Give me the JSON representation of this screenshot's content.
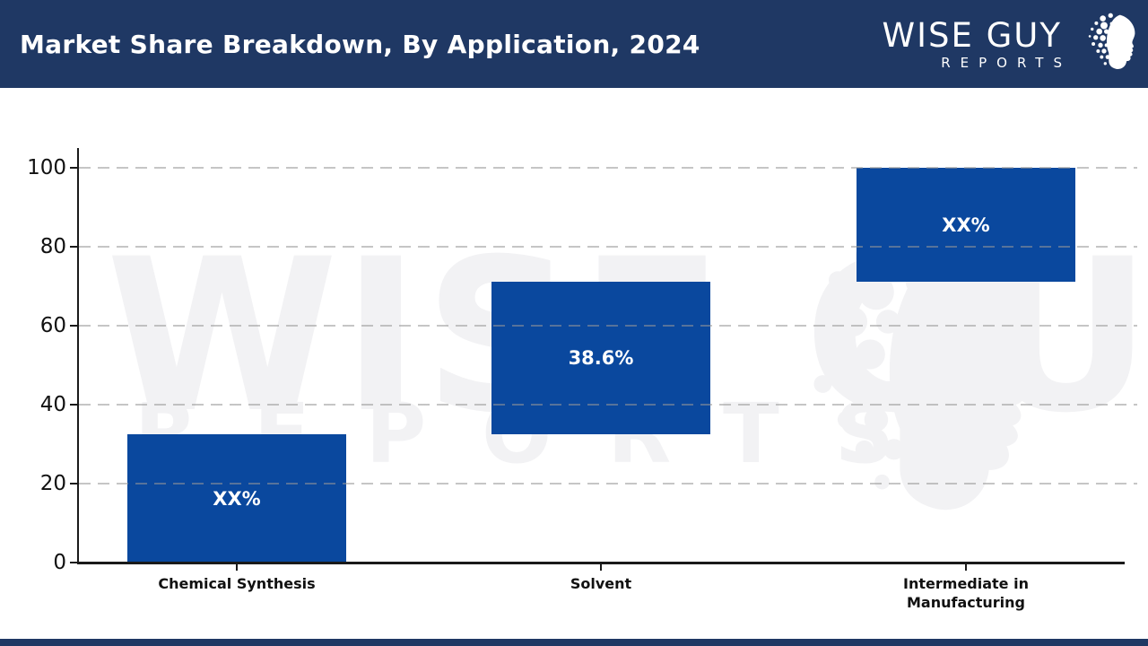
{
  "header": {
    "title": "Market Share Breakdown, By Application, 2024",
    "logo_line1": "WISE GUY",
    "logo_line2": "REPORTS"
  },
  "watermark": {
    "line1": "WISE GUY",
    "line2": "REPORTS"
  },
  "colors": {
    "header_bg": "#1F3864",
    "footer_bg": "#1F3864",
    "bar_fill": "#0A489E",
    "bar_label": "#FFFFFF",
    "gridline": "#C8C8C8",
    "axis": "#1A1A1A",
    "tick_label": "#111111",
    "watermark": "#F2F2F4"
  },
  "chart_data": {
    "type": "bar",
    "subtype": "waterfall-breakdown",
    "title": "Market Share Breakdown, By Application, 2024",
    "categories": [
      "Chemical Synthesis",
      "Solvent",
      "Intermediate in Manufacturing"
    ],
    "series": [
      {
        "name": "Market share (%)",
        "segments": [
          {
            "category": "Chemical Synthesis",
            "label": "XX%",
            "from": 0,
            "to": 32.5
          },
          {
            "category": "Solvent",
            "label": "38.6%",
            "from": 32.5,
            "to": 71.1
          },
          {
            "category": "Intermediate in Manufacturing",
            "label": "XX%",
            "from": 71.1,
            "to": 100
          }
        ]
      }
    ],
    "xlabel": "",
    "ylabel": "",
    "ylim": [
      0,
      100
    ],
    "yticks": [
      0,
      20,
      40,
      60,
      80,
      100
    ],
    "grid": "horizontal-dashed",
    "legend": "none"
  }
}
